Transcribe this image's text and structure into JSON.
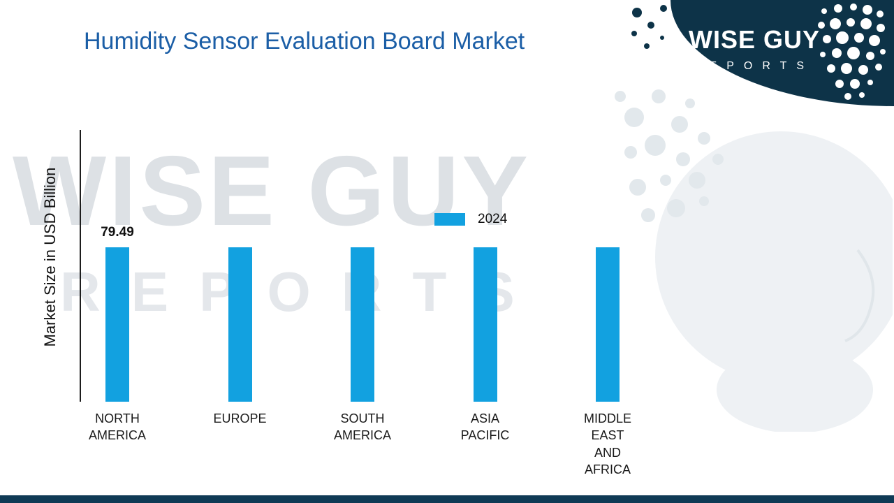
{
  "brand": {
    "name": "WISE GUY",
    "sub": "REPORTS"
  },
  "watermark": {
    "line1": "WISE GUY",
    "line2": "REPORTS"
  },
  "colors": {
    "title_blue": "#1B5EA6",
    "bar_blue": "#12A1E0",
    "dark_navy": "#0D3348",
    "footer_navy": "#0F3A55"
  },
  "chart_data": {
    "type": "bar",
    "title": "Humidity Sensor Evaluation Board Market",
    "ylabel": "Market Size in USD Billion",
    "xlabel": "",
    "categories": [
      "NORTH AMERICA",
      "EUROPE",
      "SOUTH AMERICA",
      "ASIA PACIFIC",
      "MIDDLE EAST AND AFRICA"
    ],
    "series": [
      {
        "name": "2024",
        "values": [
          79.49,
          79.49,
          79.49,
          79.49,
          79.49
        ]
      }
    ],
    "data_labels": [
      "79.49",
      "",
      "",
      "",
      ""
    ],
    "bar_color": "#12A1E0",
    "ylim": [
      0,
      140
    ],
    "grid": false,
    "legend_position": "top-center"
  }
}
